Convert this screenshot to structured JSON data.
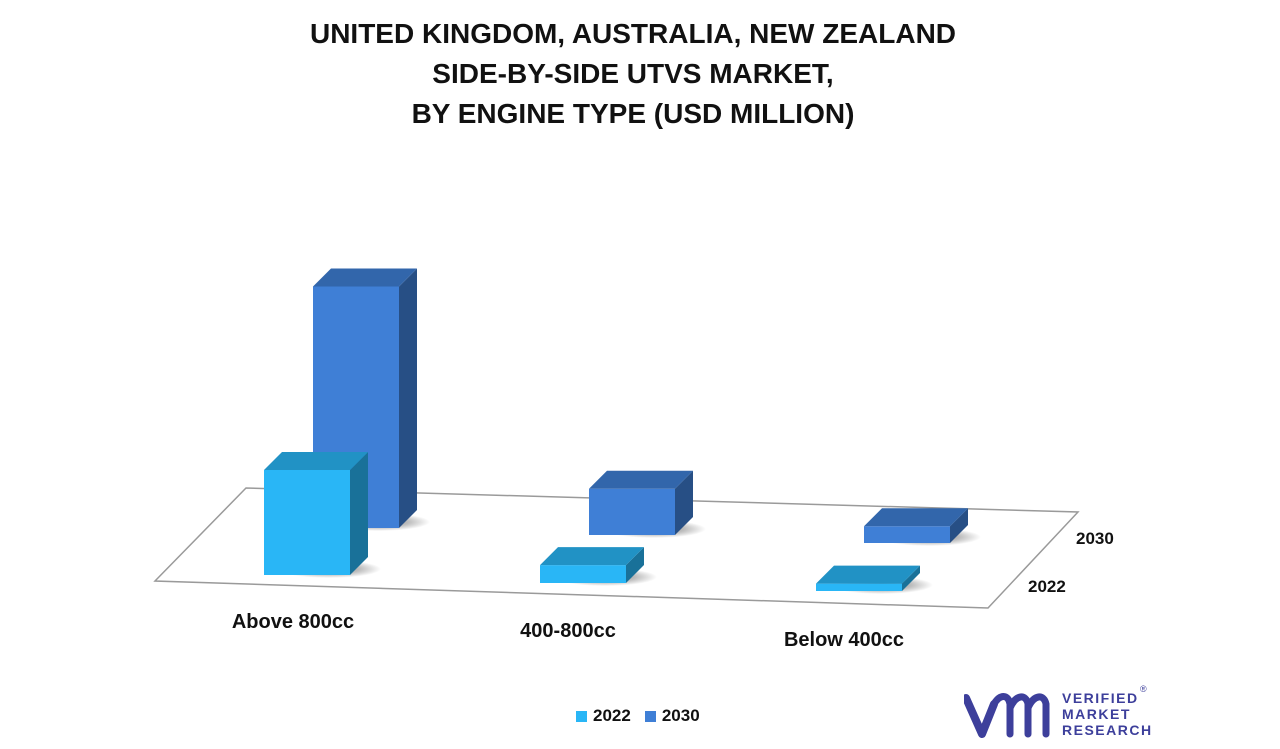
{
  "chart_data": {
    "type": "bar",
    "style": "3d",
    "title": [
      "UNITED KINGDOM, AUSTRALIA, NEW ZEALAND",
      "SIDE-BY-SIDE UTVS MARKET,",
      "BY ENGINE TYPE (USD MILLION)"
    ],
    "categories": [
      "Above 800cc",
      "400-800cc",
      "Below 400cc"
    ],
    "series": [
      {
        "name": "2022",
        "values": [
          100,
          17,
          7
        ],
        "color": "#29b6f6"
      },
      {
        "name": "2030",
        "values": [
          230,
          44,
          16
        ],
        "color": "#3f7fd6"
      }
    ],
    "depth_labels": [
      "2030",
      "2022"
    ],
    "legend": {
      "position": "bottom",
      "entries": [
        "2022",
        "2030"
      ]
    },
    "grid": false
  },
  "logo": {
    "lines": [
      "VERIFIED",
      "MARKET",
      "RESEARCH"
    ],
    "mark": "®"
  }
}
